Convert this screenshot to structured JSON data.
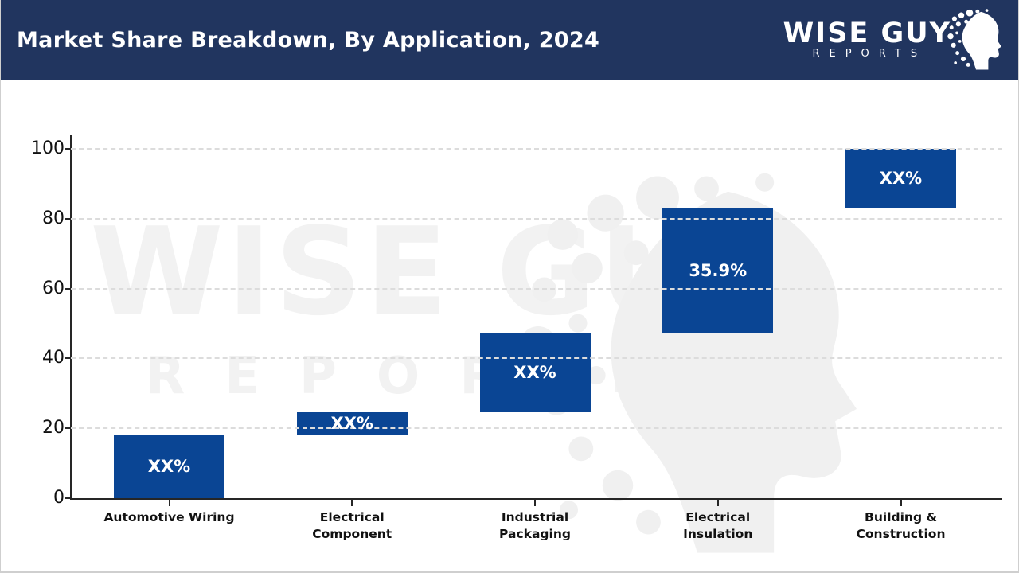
{
  "header": {
    "title": "Market Share Breakdown, By Application, 2024",
    "logo": {
      "line1": "WISE GUY",
      "line2": "REPORTS"
    }
  },
  "watermark": {
    "line1": "WISE GUY",
    "line2": "REPORTS"
  },
  "colors": {
    "header_bg": "#21355F",
    "bar": "#0A4594",
    "axis": "#262626",
    "gridline": "#DCDCDC",
    "watermark": "#F2F2F2",
    "bar_label_text": "#FFFFFF"
  },
  "chart_data": {
    "type": "bar",
    "subtype": "waterfall",
    "title": "Market Share Breakdown, By Application, 2024",
    "categories": [
      "Automotive Wiring",
      "Electrical Component",
      "Industrial Packaging",
      "Electrical Insulation",
      "Building & Construction"
    ],
    "category_lines": [
      [
        "Automotive Wiring"
      ],
      [
        "Electrical",
        "Component"
      ],
      [
        "Industrial",
        "Packaging"
      ],
      [
        "Electrical",
        "Insulation"
      ],
      [
        "Building &",
        "Construction"
      ]
    ],
    "segments": [
      {
        "start": 0,
        "end": 18.0,
        "value": 18.0,
        "label": "XX%"
      },
      {
        "start": 18.0,
        "end": 24.6,
        "value": 6.6,
        "label": "XX%"
      },
      {
        "start": 24.6,
        "end": 47.2,
        "value": 22.6,
        "label": "XX%"
      },
      {
        "start": 47.2,
        "end": 83.1,
        "value": 35.9,
        "label": "35.9%"
      },
      {
        "start": 83.1,
        "end": 100.0,
        "value": 16.9,
        "label": "XX%"
      }
    ],
    "xlabel": "",
    "ylabel": "",
    "yticks": [
      0,
      20,
      40,
      60,
      80,
      100
    ],
    "ylim": [
      0,
      105
    ],
    "grid": "horizontal-dashed",
    "legend": "none"
  }
}
